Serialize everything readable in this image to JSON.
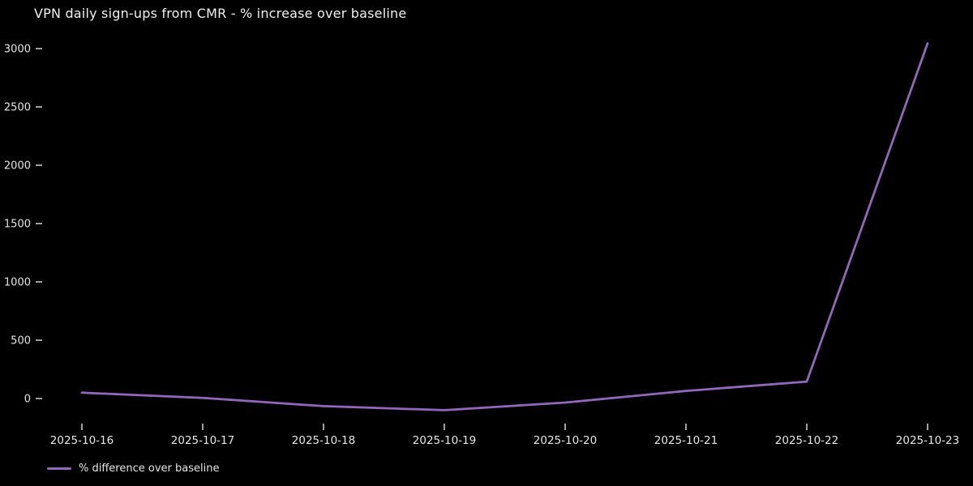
{
  "chart": {
    "title": "VPN daily sign-ups from CMR - % increase over baseline",
    "legend": {
      "label": "% difference over baseline"
    }
  },
  "chart_data": {
    "type": "line",
    "title": "VPN daily sign-ups from CMR - % increase over baseline",
    "x": [
      "2025-10-16",
      "2025-10-17",
      "2025-10-18",
      "2025-10-19",
      "2025-10-20",
      "2025-10-21",
      "2025-10-22",
      "2025-10-23"
    ],
    "series": [
      {
        "name": "% difference over baseline",
        "values": [
          50,
          5,
          -65,
          -100,
          -35,
          65,
          145,
          3045
        ],
        "color": "#9467bd"
      }
    ],
    "xlabel": "",
    "ylabel": "",
    "yticks": [
      0,
      500,
      1000,
      1500,
      2000,
      2500,
      3000
    ],
    "ylim": [
      -260,
      3200
    ],
    "grid": false,
    "legend_position": "bottom-left",
    "background_color": "#000000",
    "text_color": "#e6e6e6",
    "tick_color": "#b3b3b3"
  }
}
